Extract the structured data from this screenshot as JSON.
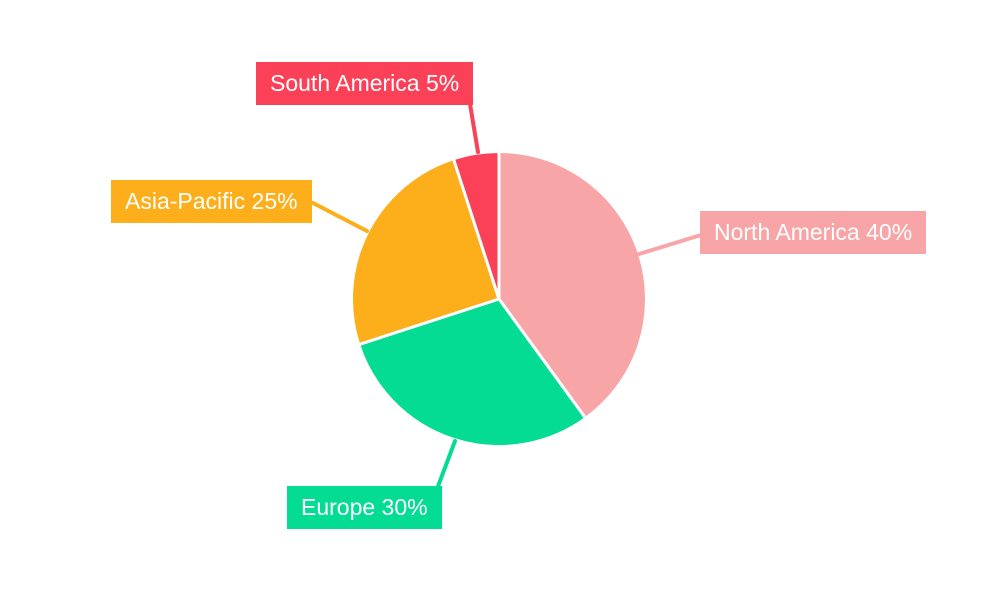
{
  "chart_data": {
    "type": "pie",
    "title": "",
    "background": "#ffffff",
    "start_angle_deg": 0,
    "direction": "clockwise",
    "slice_separator_color": "#ffffff",
    "label_text_color": "#ffffff",
    "slices": [
      {
        "label": "North America",
        "value": 40,
        "display": "North America 40%",
        "color": "#f8a5a7"
      },
      {
        "label": "Europe",
        "value": 30,
        "display": "Europe 30%",
        "color": "#04dc93"
      },
      {
        "label": "Asia-Pacific",
        "value": 25,
        "display": "Asia-Pacific 25%",
        "color": "#fcae1b"
      },
      {
        "label": "South America",
        "value": 5,
        "display": "South America 5%",
        "color": "#fb4158"
      }
    ],
    "legend": "callout-labels-with-leader-lines"
  }
}
